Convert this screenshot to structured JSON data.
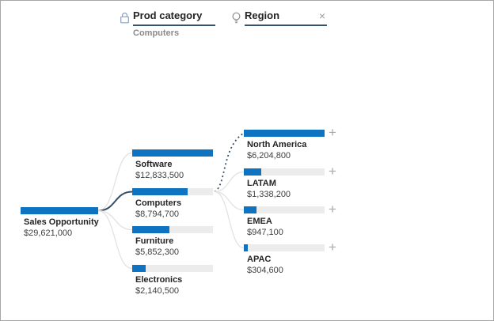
{
  "colors": {
    "bar_fill": "#0E73C0",
    "bar_track": "#ECECEC",
    "link_selected": "#37506A",
    "link_light": "#E4E4E4",
    "underline": "#34536F",
    "label": "#252423",
    "value": "#3F3F3F",
    "plus": "#A8A8A8",
    "lock_icon": "#8AA0BA",
    "bulb_icon": "#8C8C8C"
  },
  "header": {
    "fields": [
      {
        "name": "Prod category",
        "icon": "lock",
        "selected_value": "Computers"
      },
      {
        "name": "Region",
        "icon": "bulb",
        "close_glyph": "×"
      }
    ]
  },
  "chart_data": {
    "type": "decomposition-tree",
    "measure": "Sales Opportunity",
    "root": {
      "label": "Sales Opportunity",
      "value": 29621000,
      "value_label": "$29,621,000"
    },
    "levels": [
      {
        "field": "Prod category",
        "nodes": [
          {
            "label": "Software",
            "value": 12833500,
            "value_label": "$12,833,500"
          },
          {
            "label": "Computers",
            "value": 8794700,
            "value_label": "$8,794,700",
            "selected": true
          },
          {
            "label": "Furniture",
            "value": 5852300,
            "value_label": "$5,852,300"
          },
          {
            "label": "Electronics",
            "value": 2140500,
            "value_label": "$2,140,500"
          }
        ]
      },
      {
        "field": "Region",
        "nodes": [
          {
            "label": "North America",
            "value": 6204800,
            "value_label": "$6,204,800",
            "expandable": true
          },
          {
            "label": "LATAM",
            "value": 1338200,
            "value_label": "$1,338,200",
            "expandable": true
          },
          {
            "label": "EMEA",
            "value": 947100,
            "value_label": "$947,100",
            "expandable": true
          },
          {
            "label": "APAC",
            "value": 304600,
            "value_label": "$304,600",
            "expandable": true
          }
        ]
      }
    ],
    "expand_glyph": "+"
  }
}
